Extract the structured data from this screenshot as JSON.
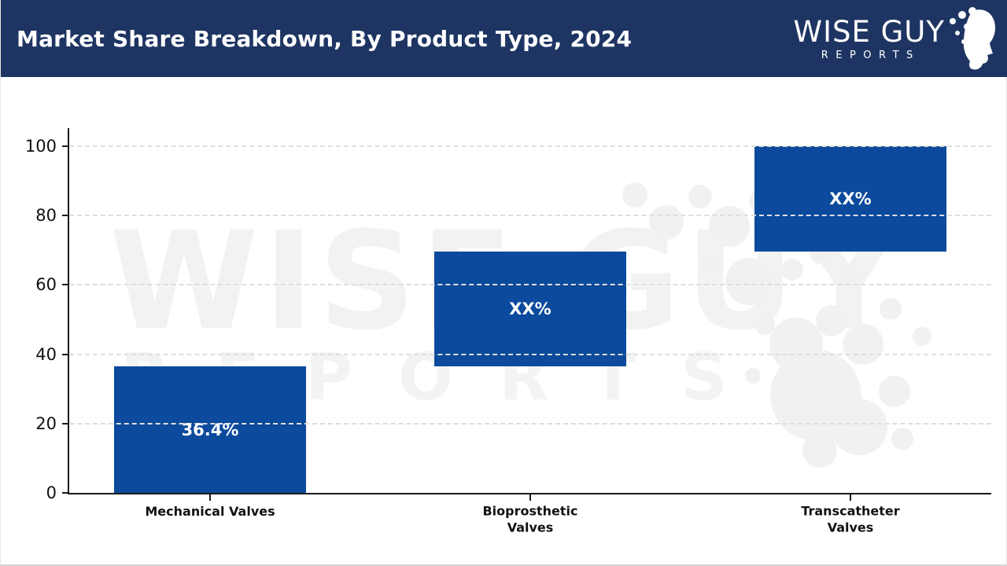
{
  "header": {
    "title": "Market Share Breakdown, By Product Type, 2024",
    "bg_color": "#1e3563",
    "logo": {
      "line1": "WISE GUY",
      "line2": "REPORTS"
    }
  },
  "watermark": {
    "line1": "WISE GUY",
    "line2": "REPORTS"
  },
  "chart_data": {
    "type": "bar",
    "variant": "waterfall",
    "title": "Market Share Breakdown, By Product Type, 2024",
    "categories": [
      "Mechanical Valves",
      "Bioprosthetic\nValves",
      "Transcatheter\nValves"
    ],
    "bars": [
      {
        "category": "Mechanical Valves",
        "start": 0,
        "end": 36.4,
        "value": 36.4,
        "label": "36.4%"
      },
      {
        "category": "Bioprosthetic Valves",
        "start": 36.4,
        "end": 69.6,
        "value": 33.2,
        "label": "XX%"
      },
      {
        "category": "Transcatheter Valves",
        "start": 69.6,
        "end": 100,
        "value": 30.4,
        "label": "XX%"
      }
    ],
    "bar_color": "#0b4a9c",
    "bar_label_color": "#ffffff",
    "yticks": [
      0,
      20,
      40,
      60,
      80,
      100
    ],
    "ylim": [
      0,
      105
    ],
    "grid": {
      "axis": "y",
      "style": "dashed",
      "color": "#dedede",
      "above_bars": true
    },
    "legend_position": "none",
    "xlabel": "",
    "ylabel": ""
  }
}
